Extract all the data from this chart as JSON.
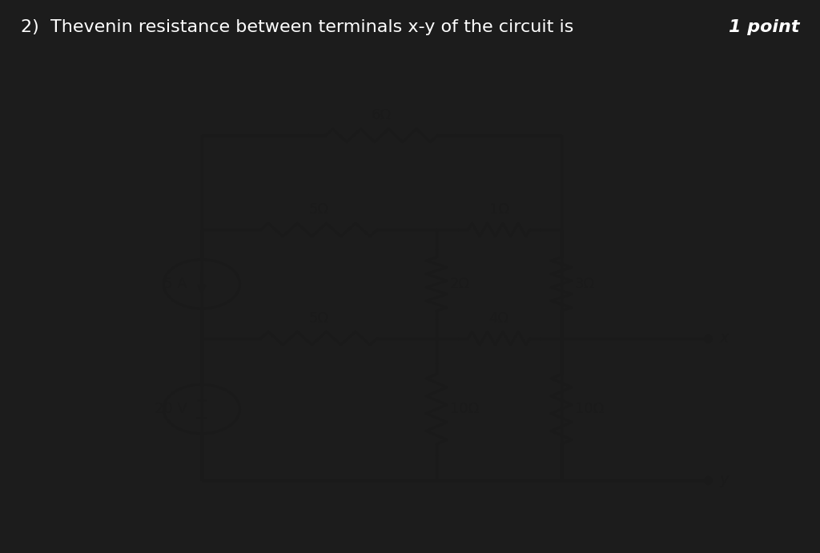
{
  "title": "2)  Thevenin resistance between terminals x-y of the circuit is",
  "points_label": "1 point",
  "bg_outer": "#1c1c1c",
  "bg_inner": "#e6e6e6",
  "line_color": "#1a1a1a",
  "title_color": "#ffffff",
  "title_fontsize": 16,
  "points_fontsize": 16,
  "label_fontsize": 13,
  "xl": 2.3,
  "xm2": 5.5,
  "xm3": 7.2,
  "xr": 9.2,
  "yt": 8.5,
  "yum": 6.5,
  "yx": 4.2,
  "yb": 1.2
}
